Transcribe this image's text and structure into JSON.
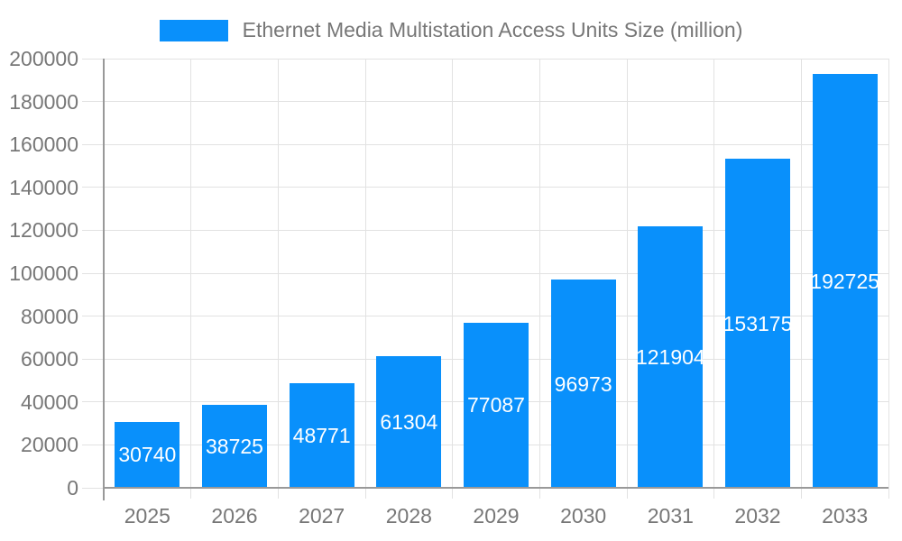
{
  "chart_data": {
    "type": "bar",
    "title": "Ethernet Media Multistation Access Units Size (million)",
    "categories": [
      "2025",
      "2026",
      "2027",
      "2028",
      "2029",
      "2030",
      "2031",
      "2032",
      "2033"
    ],
    "series": [
      {
        "name": "Ethernet Media Multistation Access Units Size (million)",
        "values": [
          30740,
          38725,
          48771,
          61304,
          77087,
          96973,
          121904,
          153175,
          192725
        ]
      }
    ],
    "xlabel": "",
    "ylabel": "",
    "ylim": [
      0,
      200000
    ],
    "yticks": [
      0,
      20000,
      40000,
      60000,
      80000,
      100000,
      120000,
      140000,
      160000,
      180000,
      200000
    ],
    "grid": true,
    "legend_position": "top",
    "bar_labels_visible": true,
    "bar_label_position": "inside-center",
    "colors": {
      "bar": "#0990fb",
      "bar_label": "#ffffff",
      "label": "#777777",
      "grid": "#e2e2e2",
      "axis": "#999999"
    }
  }
}
